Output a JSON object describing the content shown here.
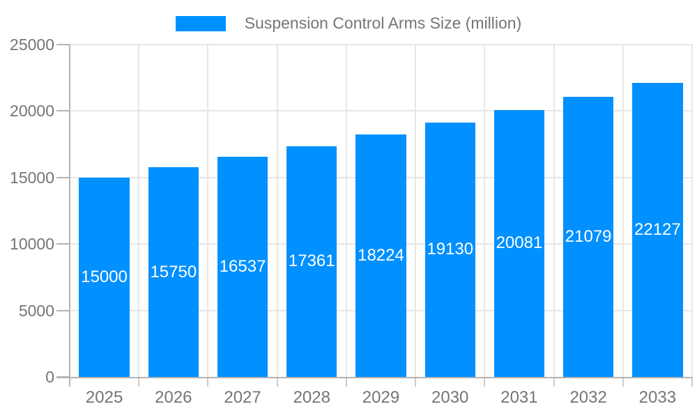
{
  "chart_data": {
    "type": "bar",
    "title": "Suspension Control Arms Size (million)",
    "categories": [
      "2025",
      "2026",
      "2027",
      "2028",
      "2029",
      "2030",
      "2031",
      "2032",
      "2033"
    ],
    "values": [
      15000,
      15750,
      16537,
      17361,
      18224,
      19130,
      20081,
      21079,
      22127
    ],
    "xlabel": "",
    "ylabel": "",
    "ylim": [
      0,
      25000
    ],
    "yticks": [
      0,
      5000,
      10000,
      15000,
      20000,
      25000
    ],
    "grid": true,
    "legend_position": "top-center",
    "value_label_position": "inside-center",
    "colors": {
      "bar": "#0190ff",
      "text": "#757575",
      "grid_line": "#e6e6e6",
      "axis_line": "#b3b3b3",
      "x_tick_line": "#cccccc",
      "value_label": "#ffffff"
    }
  }
}
